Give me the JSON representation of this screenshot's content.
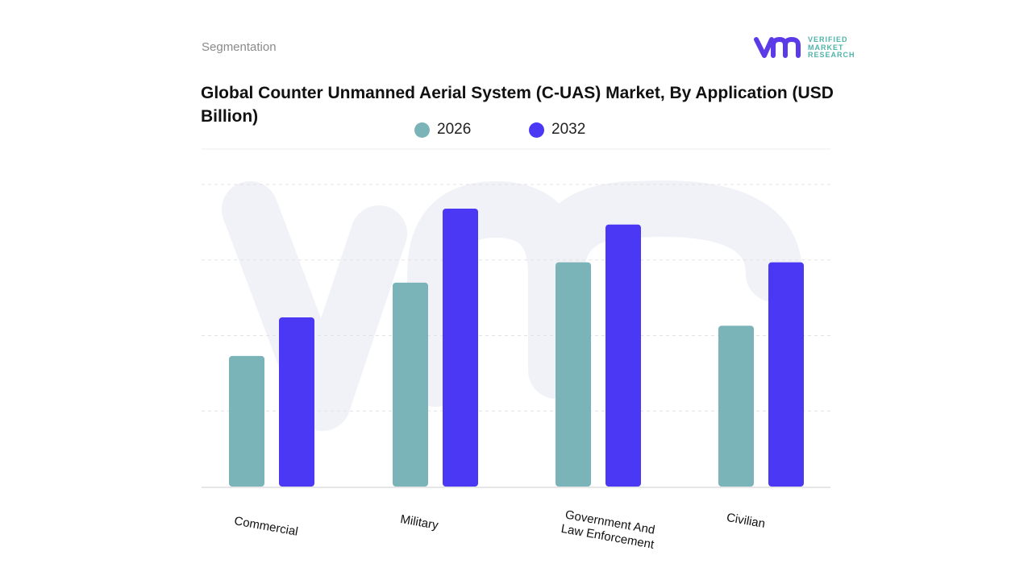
{
  "header": {
    "section": "Segmentation",
    "logo_text": [
      "VERIFIED",
      "MARKET",
      "RESEARCH"
    ]
  },
  "colors": {
    "s2026": "#7ab4b8",
    "s2032": "#4b38f5",
    "grid": "#e3e3e3",
    "watermark": "#f1f1f8",
    "logo_purple": "#5b3ae8",
    "logo_teal": "#4fb3a9"
  },
  "chart_data": {
    "type": "bar",
    "title": "Global Counter Unmanned Aerial System (C-UAS) Market, By Application (USD Billion)",
    "categories": [
      "Commercial",
      "Military",
      "Government And Law Enforcement",
      "Civilian"
    ],
    "series": [
      {
        "name": "2026",
        "values": [
          1.73,
          2.7,
          2.97,
          2.13
        ]
      },
      {
        "name": "2032",
        "values": [
          2.24,
          3.68,
          3.47,
          2.97
        ]
      }
    ],
    "ylim": [
      0,
      4
    ],
    "grid": true,
    "legend": "top-center",
    "xlabel": "",
    "ylabel": ""
  }
}
